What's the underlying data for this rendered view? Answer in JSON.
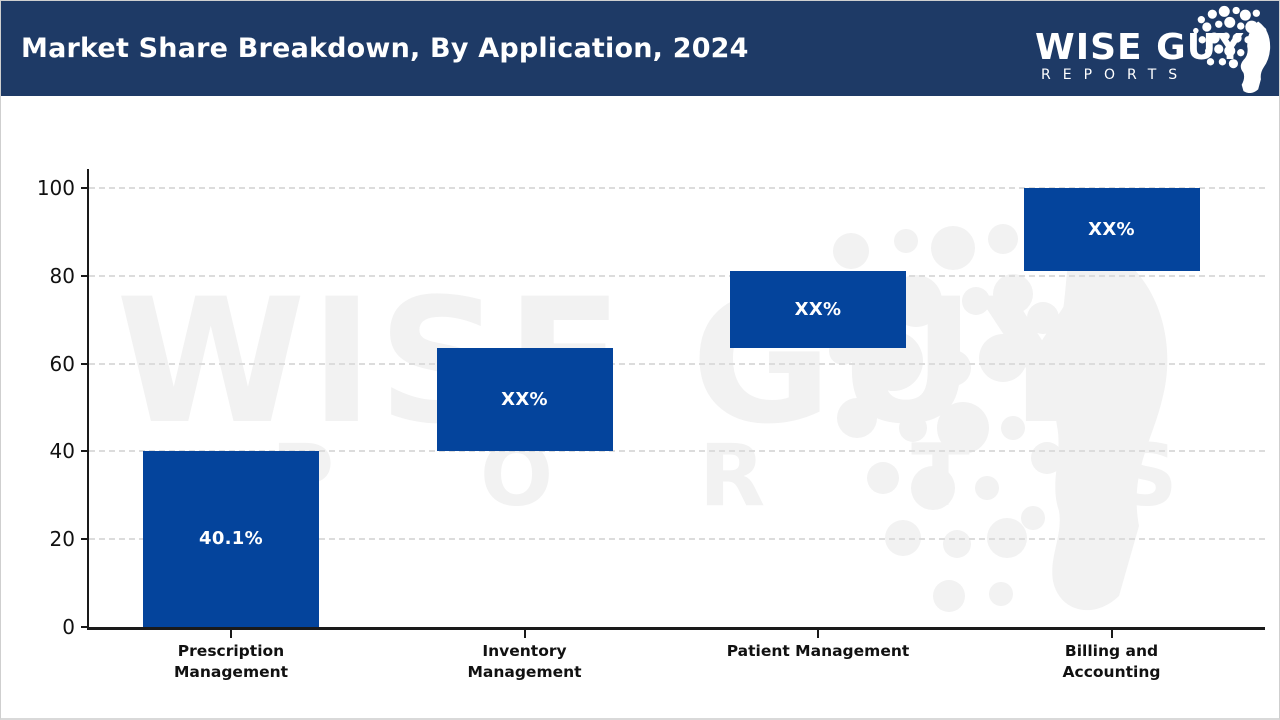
{
  "header": {
    "title": "Market Share Breakdown, By Application, 2024",
    "bg_color": "#1e3a66",
    "logo": {
      "line1": "WISE GUY",
      "line2": "REPORTS"
    }
  },
  "watermark": {
    "line1": "WISE GUY",
    "line2": "P O R T S"
  },
  "chart_data": {
    "type": "bar",
    "variant": "waterfall",
    "title": "Market Share Breakdown, By Application, 2024",
    "categories": [
      "Prescription\nManagement",
      "Inventory\nManagement",
      "Patient Management",
      "Billing and\nAccounting"
    ],
    "segments": [
      {
        "category": "Prescription\nManagement",
        "start": 0,
        "end": 40.1,
        "label": "40.1%"
      },
      {
        "category": "Inventory\nManagement",
        "start": 40.1,
        "end": 63.5,
        "label": "XX%"
      },
      {
        "category": "Patient Management",
        "start": 63.5,
        "end": 81.2,
        "label": "XX%"
      },
      {
        "category": "Billing and\nAccounting",
        "start": 81.2,
        "end": 100,
        "label": "XX%"
      }
    ],
    "ylim": [
      0,
      100
    ],
    "yticks": [
      0,
      20,
      40,
      60,
      80,
      100
    ],
    "xlabel": "",
    "ylabel": "",
    "grid": "horizontal-dashed",
    "legend": "none",
    "bar_color": "#04449c",
    "bar_label_color": "#ffffff",
    "axis_color": "#1a1a1a",
    "gridline_color": "#dcdcdc"
  }
}
